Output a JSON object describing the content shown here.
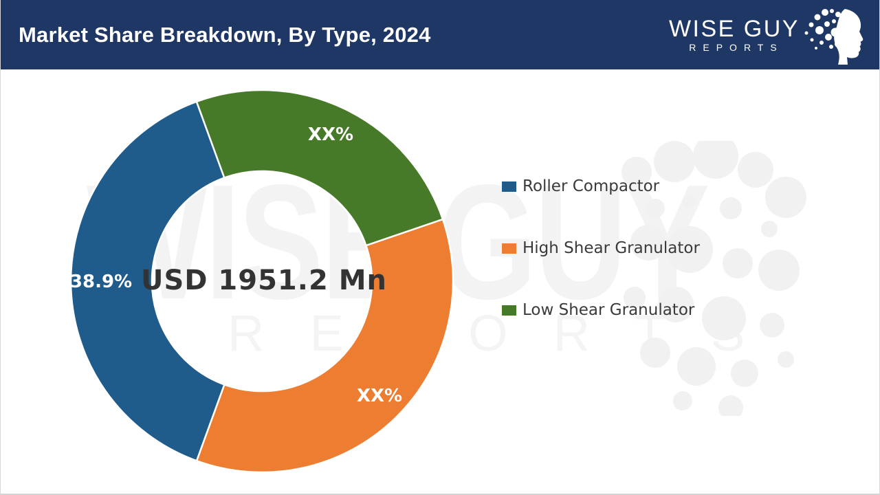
{
  "header": {
    "title": "Market Share Breakdown, By Type, 2024",
    "brand": {
      "line1": "WISE GUY",
      "line2": "REPORTS"
    }
  },
  "chart_data": {
    "type": "pie",
    "subtype": "donut",
    "title": "Market Share Breakdown, By Type, 2024",
    "center_label": "USD 1951.2 Mn",
    "start_angle_deg": 110,
    "direction": "counterclockwise",
    "legend_position": "right",
    "slices": [
      {
        "label": "Roller Compactor",
        "display_value": "38.9%",
        "pct": 38.9,
        "color": "#1f5c8b"
      },
      {
        "label": "High Shear Granulator",
        "display_value": "XX%",
        "pct": 35.8,
        "color": "#ed7d31"
      },
      {
        "label": "Low Shear Granulator",
        "display_value": "XX%",
        "pct": 25.3,
        "color": "#477a28"
      }
    ]
  },
  "watermark": {
    "line1": "WISE GUY",
    "line2": "REPORTS"
  }
}
